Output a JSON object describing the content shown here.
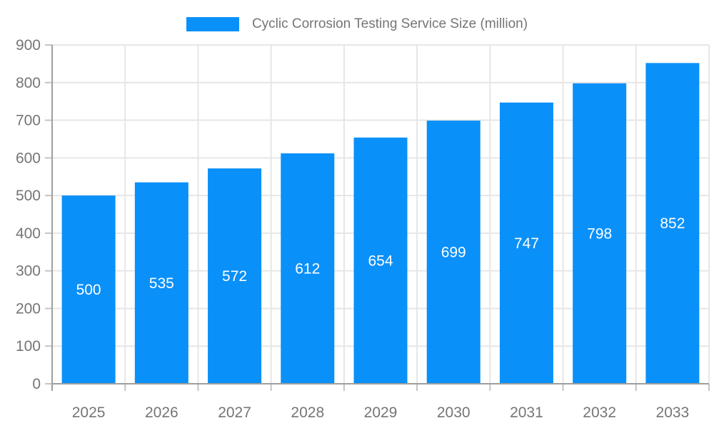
{
  "legend": {
    "label": "Cyclic Corrosion Testing Service Size (million)",
    "swatch_color": "#0A90F9"
  },
  "chart_data": {
    "type": "bar",
    "title": "Cyclic Corrosion Testing Service Size (million)",
    "series_name": "Cyclic Corrosion Testing Service Size (million)",
    "categories": [
      "2025",
      "2026",
      "2027",
      "2028",
      "2029",
      "2030",
      "2031",
      "2032",
      "2033"
    ],
    "values": [
      500,
      535,
      572,
      612,
      654,
      699,
      747,
      798,
      852
    ],
    "xlabel": "",
    "ylabel": "",
    "ylim": [
      0,
      900
    ],
    "ytick_step": 100,
    "ytick_labels": [
      "0",
      "100",
      "200",
      "300",
      "400",
      "500",
      "600",
      "700",
      "800",
      "900"
    ],
    "grid": true,
    "legend_position": "top-center",
    "bar_color": "#0A90F9",
    "bar_label_color": "#ffffff",
    "axis_label_color": "#757575",
    "grid_color": "#e6e6e6",
    "tick_color": "#c4c4c4",
    "axis_line_color": "#9e9e9e"
  }
}
